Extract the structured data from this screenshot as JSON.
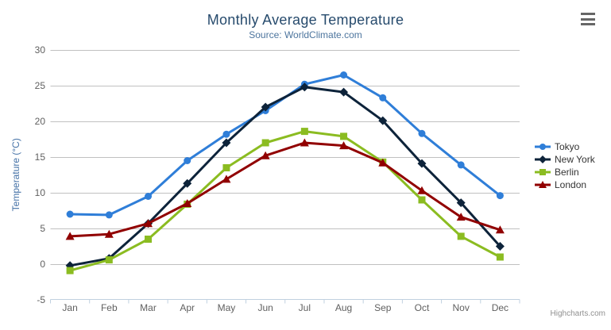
{
  "header": {
    "title": "Monthly Average Temperature",
    "subtitle": "Source: WorldClimate.com",
    "menu_icon": "hamburger-icon"
  },
  "credits": {
    "label": "Highcharts.com"
  },
  "colors": {
    "title": "#274b6d",
    "subtitle": "#4d759e",
    "grid": "#c0c0c0",
    "axis_line": "#c0d0e0",
    "axis_label": "#606060",
    "yaxis_title": "#4572a7",
    "legend_text": "#333333",
    "credits_text": "#909090",
    "menu_icon_color": "#666666",
    "background": "#ffffff"
  },
  "chart_data": {
    "type": "line",
    "title": "Monthly Average Temperature",
    "subtitle": "Source: WorldClimate.com",
    "xlabel": "",
    "ylabel": "Temperature (°C)",
    "ylim": [
      -5,
      30
    ],
    "ytick_interval": 5,
    "ytick_labels": [
      "-5",
      "0",
      "5",
      "10",
      "15",
      "20",
      "25",
      "30"
    ],
    "grid": true,
    "legend_position": "right",
    "categories": [
      "Jan",
      "Feb",
      "Mar",
      "Apr",
      "May",
      "Jun",
      "Jul",
      "Aug",
      "Sep",
      "Oct",
      "Nov",
      "Dec"
    ],
    "series": [
      {
        "name": "Tokyo",
        "color": "#2f7ed8",
        "marker": "circle",
        "values": [
          7.0,
          6.9,
          9.5,
          14.5,
          18.2,
          21.5,
          25.2,
          26.5,
          23.3,
          18.3,
          13.9,
          9.6
        ]
      },
      {
        "name": "New York",
        "color": "#0d233a",
        "marker": "diamond",
        "values": [
          -0.2,
          0.8,
          5.7,
          11.3,
          17.0,
          22.0,
          24.8,
          24.1,
          20.1,
          14.1,
          8.6,
          2.5
        ]
      },
      {
        "name": "Berlin",
        "color": "#8bbc21",
        "marker": "square",
        "values": [
          -0.9,
          0.6,
          3.5,
          8.4,
          13.5,
          17.0,
          18.6,
          17.9,
          14.3,
          9.0,
          3.9,
          1.0
        ]
      },
      {
        "name": "London",
        "color": "#910000",
        "marker": "triangle",
        "values": [
          3.9,
          4.2,
          5.7,
          8.5,
          11.9,
          15.2,
          17.0,
          16.6,
          14.2,
          10.3,
          6.6,
          4.8
        ]
      }
    ]
  }
}
